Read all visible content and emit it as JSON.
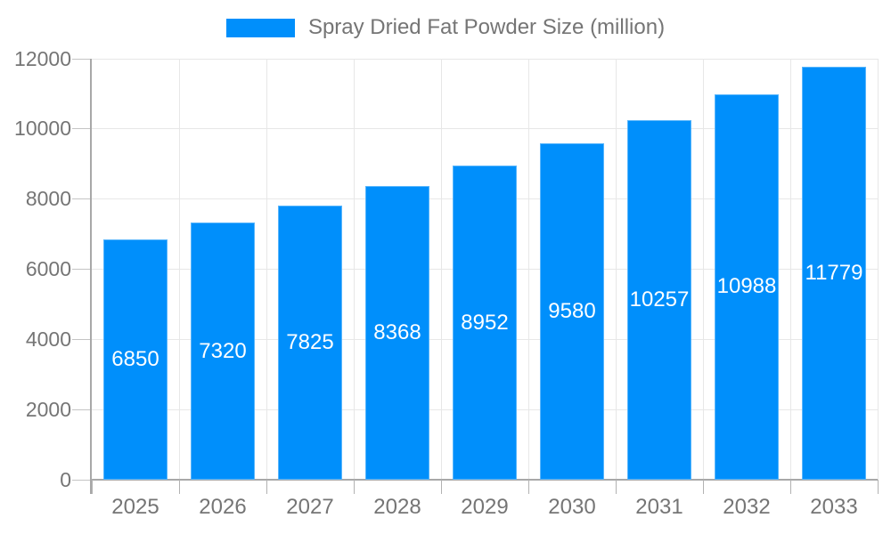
{
  "chart_data": {
    "type": "bar",
    "title": "Spray Dried Fat Powder Size (million)",
    "legend": {
      "label": "Spray Dried Fat Powder Size (million)",
      "position": "top"
    },
    "categories": [
      "2025",
      "2026",
      "2027",
      "2028",
      "2029",
      "2030",
      "2031",
      "2032",
      "2033"
    ],
    "values": [
      6850,
      7320,
      7825,
      8368,
      8952,
      9580,
      10257,
      10988,
      11779
    ],
    "value_labels": [
      "6850",
      "7320",
      "7825",
      "8368",
      "8952",
      "9580",
      "10257",
      "10988",
      "11779"
    ],
    "xlabel": "",
    "ylabel": "",
    "ylim": [
      0,
      12000
    ],
    "y_ticks": [
      0,
      2000,
      4000,
      6000,
      8000,
      10000,
      12000
    ],
    "y_tick_labels": [
      "0",
      "2000",
      "4000",
      "6000",
      "8000",
      "10000",
      "12000"
    ],
    "grid": true,
    "colors": {
      "bar": "#008FFB",
      "bar_label_text": "#ffffff",
      "axis_text": "#757575",
      "axis_line": "#a8a8a8",
      "gridline": "#e7e7e7",
      "background": "#ffffff"
    }
  }
}
